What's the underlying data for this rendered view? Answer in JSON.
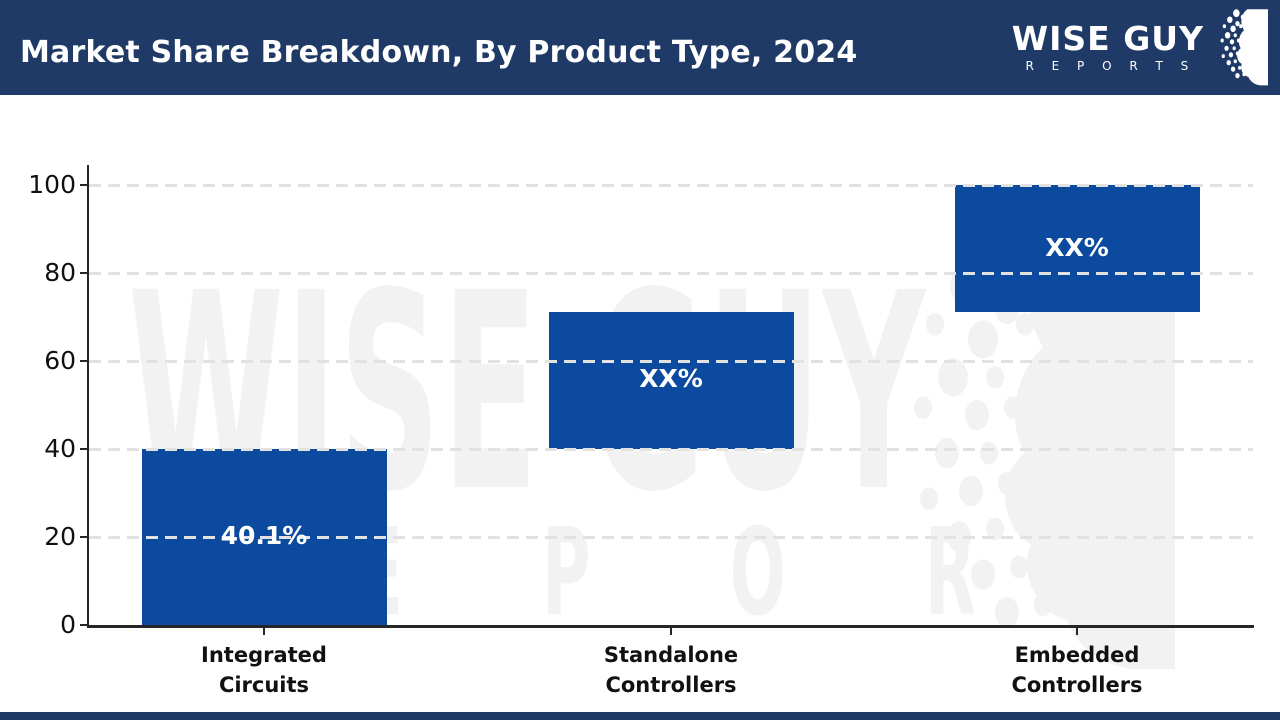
{
  "header": {
    "title": "Market Share Breakdown, By Product Type, 2024",
    "logo": {
      "wordmark": "WISE GUY",
      "subtext": "R E P O R T S"
    }
  },
  "watermark": {
    "wordmark": "WISE GUY",
    "subtext": "R E P O R T S"
  },
  "chart_data": {
    "type": "bar",
    "subtype": "waterfall",
    "title": "Market Share Breakdown, By Product Type, 2024",
    "categories": [
      "Integrated\nCircuits",
      "Standalone\nControllers",
      "Embedded\nControllers"
    ],
    "segments": [
      {
        "category": "Integrated Circuits",
        "start": 0,
        "end": 40.1,
        "label": "40.1%"
      },
      {
        "category": "Standalone Controllers",
        "start": 40.1,
        "end": 71.1,
        "label": "XX%"
      },
      {
        "category": "Embedded Controllers",
        "start": 71.1,
        "end": 100,
        "label": "XX%"
      }
    ],
    "xlabel": "",
    "ylabel": "",
    "ylim": [
      0,
      100
    ],
    "yticks": [
      0,
      20,
      40,
      60,
      80,
      100
    ],
    "grid": "horizontal-dashed",
    "legend": "none"
  },
  "colors": {
    "header_bg": "#1F3A66",
    "footer_bg": "#1F3A66",
    "bar_fill": "#0B4A9E",
    "bar_label": "#FFFFFF",
    "grid_line": "#E2E2E2",
    "axis_line": "#262626",
    "tick_label": "#111111",
    "watermark": "#F2F2F2"
  }
}
